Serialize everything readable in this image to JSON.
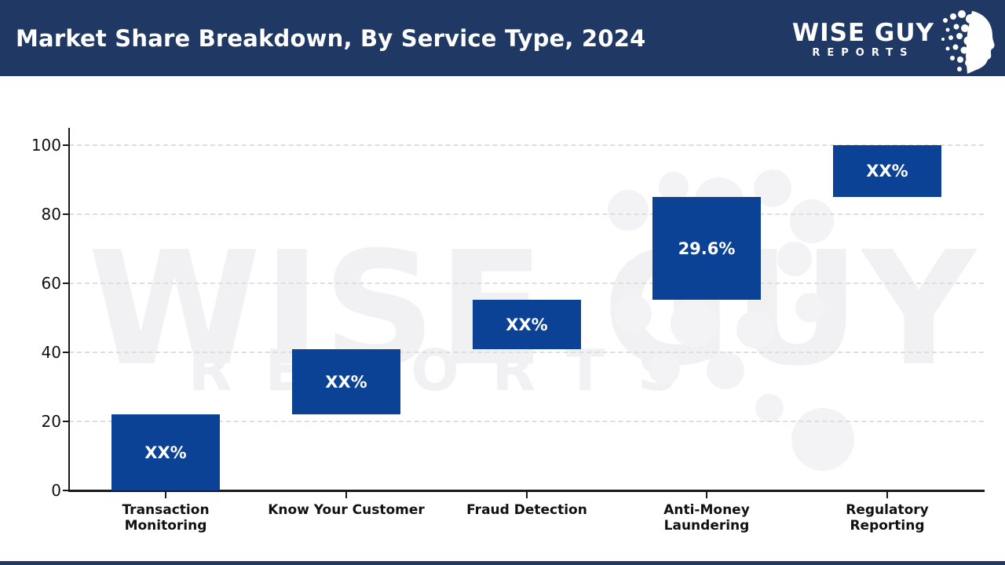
{
  "header": {
    "title": "Market Share Breakdown, By Service Type, 2024",
    "logo": {
      "line1": "WISE GUY",
      "line2": "REPORTS"
    }
  },
  "watermark": {
    "line1": "WISE GUY",
    "line2": "REPORTS"
  },
  "footer": {},
  "chart_data": {
    "type": "bar",
    "subtype": "waterfall",
    "title": "Market Share Breakdown, By Service Type, 2024",
    "xlabel": "",
    "ylabel": "",
    "ylim": [
      0,
      105
    ],
    "yticks": [
      0,
      20,
      40,
      60,
      80,
      100
    ],
    "grid": "dashed-horizontal",
    "legend": "none",
    "bar_color": "#0b4296",
    "categories": [
      "Transaction Monitoring",
      "Know Your Customer",
      "Fraud Detection",
      "Anti-Money Laundering",
      "Regulatory Reporting"
    ],
    "category_lines": [
      [
        "Transaction",
        "Monitoring"
      ],
      [
        "Know Your Customer"
      ],
      [
        "Fraud Detection"
      ],
      [
        "Anti-Money",
        "Laundering"
      ],
      [
        "Regulatory",
        "Reporting"
      ]
    ],
    "segments": [
      {
        "category": "Transaction Monitoring",
        "start": 0,
        "end": 22,
        "value_label": "XX%"
      },
      {
        "category": "Know Your Customer",
        "start": 22,
        "end": 40.8,
        "value_label": "XX%"
      },
      {
        "category": "Fraud Detection",
        "start": 40.8,
        "end": 55.3,
        "value_label": "XX%"
      },
      {
        "category": "Anti-Money Laundering",
        "start": 55.3,
        "end": 84.9,
        "value_label": "29.6%"
      },
      {
        "category": "Regulatory Reporting",
        "start": 84.9,
        "end": 100,
        "value_label": "XX%"
      }
    ]
  },
  "colors": {
    "header_bg": "#1f3864",
    "footer_bg": "#1f3864",
    "bar": "#0b4296",
    "gridline": "#dedede",
    "axis": "#1a1a1a",
    "watermark": "#f1f1f4",
    "bar_label_text": "#ffffff",
    "title_text": "#ffffff"
  }
}
